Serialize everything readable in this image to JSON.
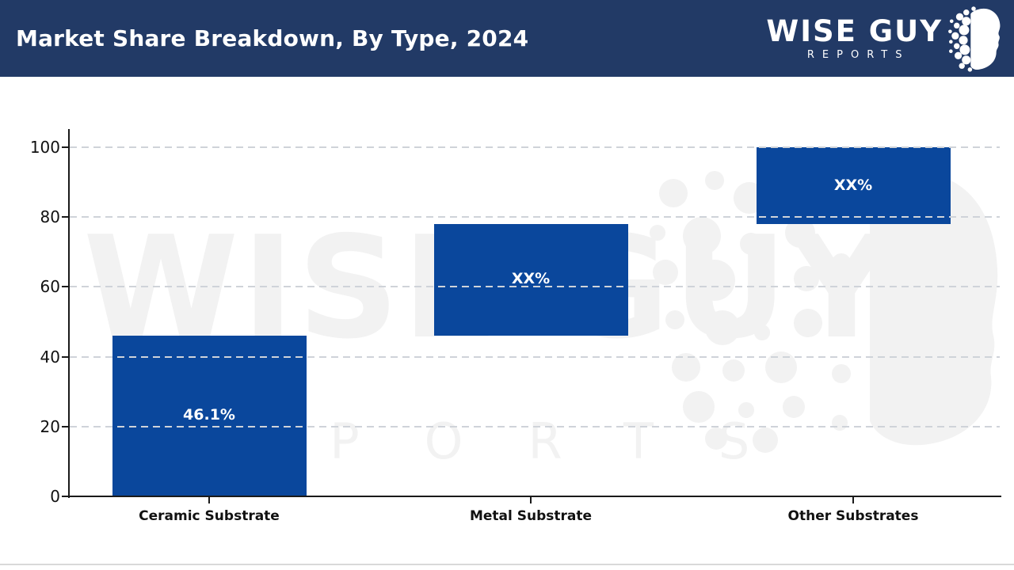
{
  "header": {
    "title": "Market Share Breakdown, By Type, 2024",
    "bg_color": "#223A66",
    "logo": {
      "line1": "WISE GUY",
      "line2": "REPORTS",
      "face_icon": "dotted-head-profile"
    }
  },
  "watermark": {
    "line1": "WISE GUY",
    "line2": "REPORTS",
    "face_icon": "dotted-head-profile",
    "color": "#f2f2f2"
  },
  "chart_data": {
    "type": "bar",
    "subtype": "floating-segment-bars",
    "title": "Market Share Breakdown, By Type, 2024",
    "categories": [
      "Ceramic Substrate",
      "Metal Substrate",
      "Other Substrates"
    ],
    "bars": [
      {
        "category": "Ceramic Substrate",
        "start": 0,
        "end": 46.1,
        "label": "46.1%"
      },
      {
        "category": "Metal Substrate",
        "start": 46.1,
        "end": 78,
        "label": "XX%"
      },
      {
        "category": "Other Substrates",
        "start": 78,
        "end": 100,
        "label": "XX%"
      }
    ],
    "xlabel": "",
    "ylabel": "",
    "ylim": [
      0,
      100
    ],
    "yticks": [
      0,
      20,
      40,
      60,
      80,
      100
    ],
    "grid": "dashed-horizontal",
    "legend": "none",
    "bar_color": "#0A479C",
    "bar_label_color": "#ffffff",
    "axis_color": "#1a1a1a",
    "gridline_color": "#cfd3d9",
    "tick_label_color": "#111111"
  }
}
